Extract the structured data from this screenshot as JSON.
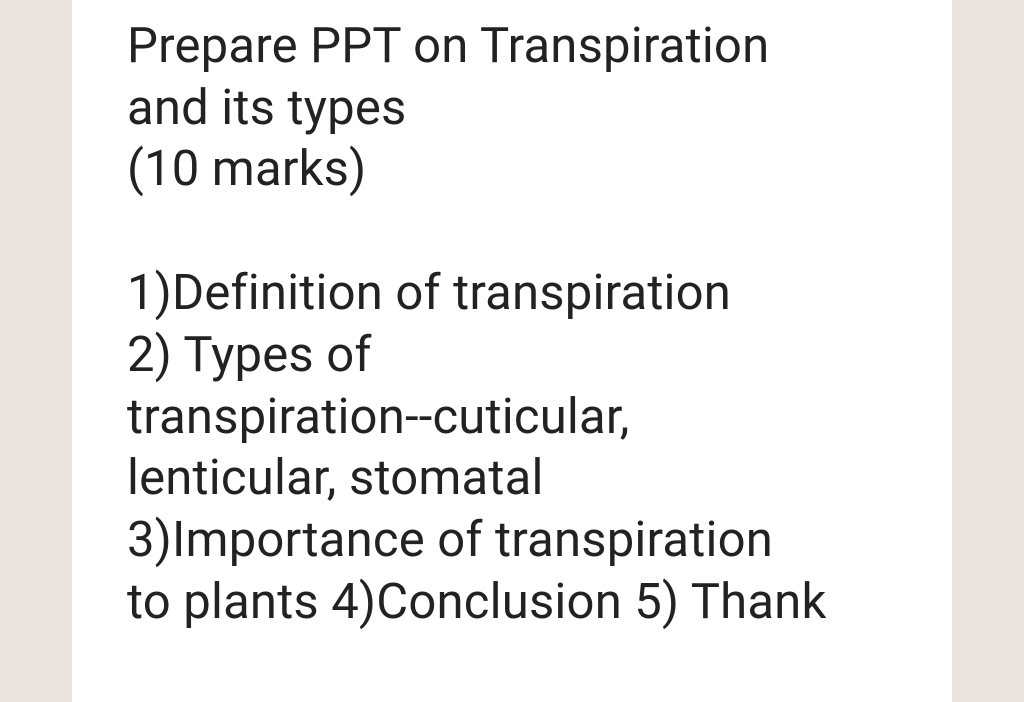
{
  "document": {
    "text_color": "#222222",
    "background_color": "#e9e4de",
    "card_color": "#ffffff",
    "font_size_pt": 37,
    "block1": {
      "line1": "Prepare PPT on Transpiration",
      "line2": "and its types",
      "line3": "(10 marks)"
    },
    "block2": {
      "line1": "1)Definition of transpiration",
      "line2": "2) Types of",
      "line3": "transpiration--cuticular,",
      "line4": "lenticular, stomatal",
      "line5": "3)Importance of transpiration",
      "line6": "to plants 4)Conclusion 5) Thank"
    }
  }
}
